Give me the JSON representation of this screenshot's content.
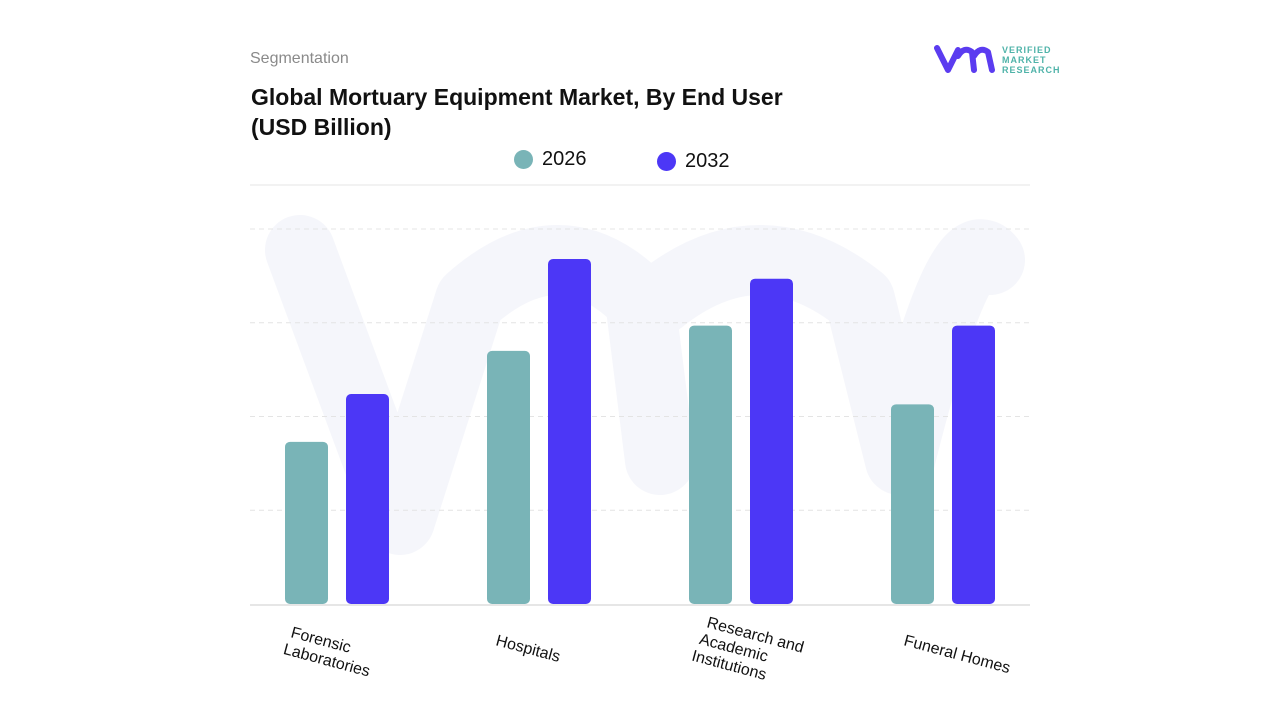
{
  "header": {
    "segment_label": "Segmentation",
    "title_line1": "Global Mortuary Equipment Market, By End User",
    "title_line2": "(USD Billion)"
  },
  "logo": {
    "text_lines": [
      "VERIFIED",
      "MARKET",
      "RESEARCH"
    ],
    "color_mark": "#5b3cf0",
    "color_text": "#4fb3a9"
  },
  "chart_data": {
    "type": "bar",
    "title": "Global Mortuary Equipment Market, By End User (USD Billion)",
    "categories": [
      [
        "Forensic",
        "Laboratories"
      ],
      [
        "Hospitals"
      ],
      [
        "Research and",
        "Academic",
        "Institutions"
      ],
      [
        "Funeral Homes"
      ]
    ],
    "series": [
      {
        "name": "2026",
        "color": "#79b4b7",
        "values": [
          1.73,
          2.7,
          2.97,
          2.13
        ]
      },
      {
        "name": "2032",
        "color": "#4c37f6",
        "values": [
          2.24,
          3.68,
          3.47,
          2.97
        ]
      }
    ],
    "ylim": [
      0,
      4
    ],
    "grid": true,
    "y_tick_labels_shown": false,
    "legend_position": "top-center"
  }
}
